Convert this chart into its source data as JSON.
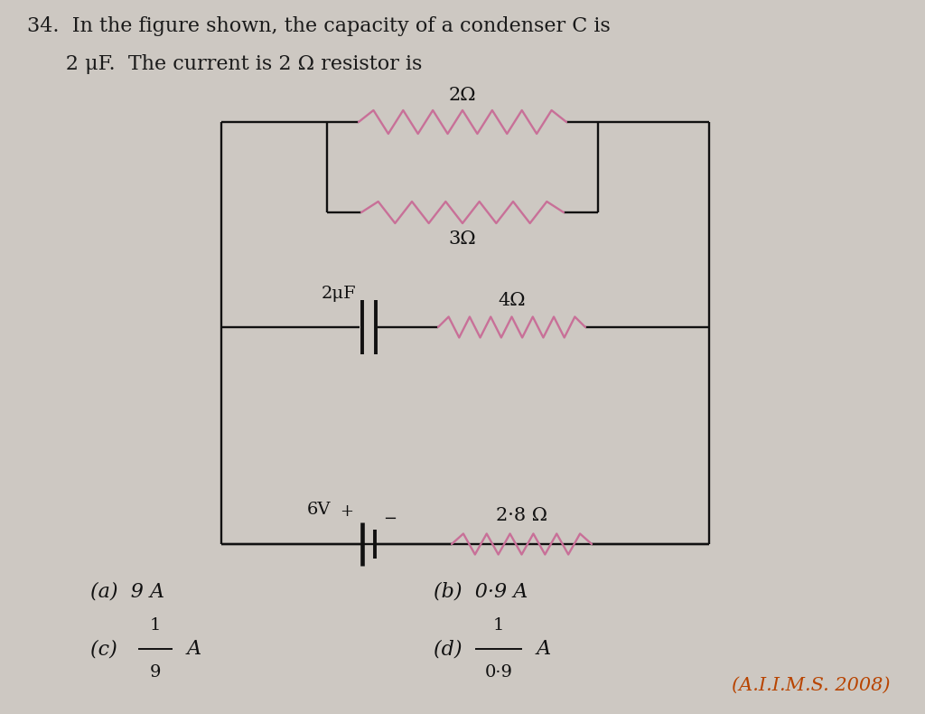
{
  "bg_color": "#cdc8c2",
  "title_line1": "34.  In the figure shown, the capacity of a condenser C is",
  "title_line2": "      2 μF.  The current is 2 Ω resistor is",
  "title_fontsize": 16,
  "title_color": "#1a1a1a",
  "circuit": {
    "resistor_color": "#c87098",
    "wire_color": "#111111",
    "label_color": "#111111",
    "r2_label": "2Ω",
    "r3_label": "3Ω",
    "r4_label": "4Ω",
    "r28_label": "2·8 Ω",
    "cap_label": "2μF",
    "bat_label": "6V"
  },
  "options": {
    "a_text": "(a)  9 A",
    "b_text": "(b)  0·9 A",
    "c_prefix": "(c)  ",
    "c_num": "1",
    "c_den": "9",
    "c_suffix": " A",
    "d_prefix": "(d)  ",
    "d_num": "1",
    "d_den": "0·9",
    "d_suffix": " A"
  },
  "source": "(A.I.I.M.S. 2008)",
  "source_color": "#b84400",
  "options_color": "#111111"
}
